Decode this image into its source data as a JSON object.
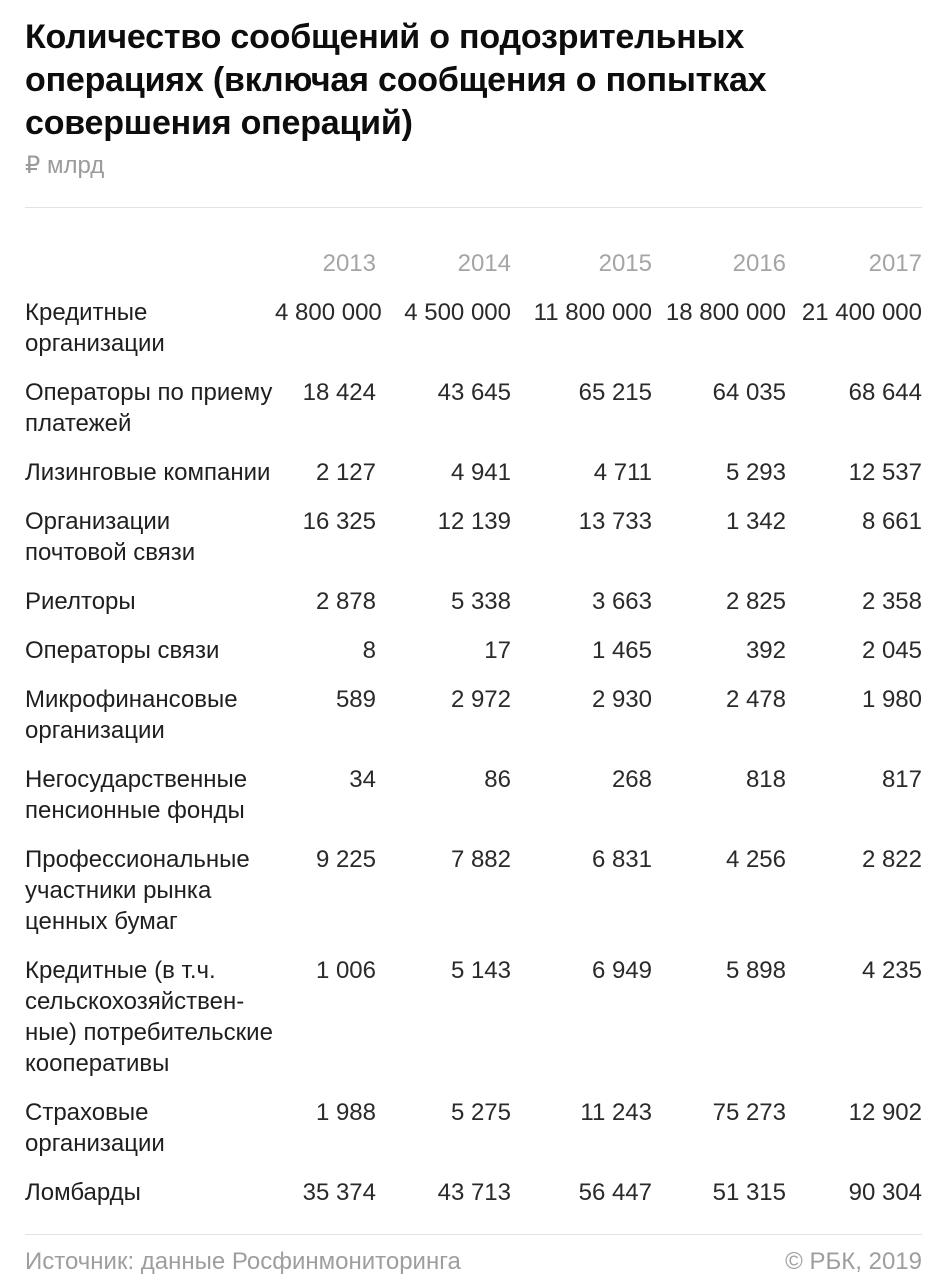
{
  "page": {
    "title": "Количество сообщений о подозрительных операциях (включая сообщения о попытках совершения операций)",
    "unit_label": "₽ млрд"
  },
  "table": {
    "year_columns": [
      "2013",
      "2014",
      "2015",
      "2016",
      "2017"
    ],
    "rows": [
      {
        "label": "Кредитные\nорганизации",
        "values": [
          "4 800 000",
          "4 500 000",
          "11 800 000",
          "18 800 000",
          "21 400 000"
        ]
      },
      {
        "label": "Операторы по приему\nплатежей",
        "values": [
          "18 424",
          "43 645",
          "65 215",
          "64 035",
          "68 644"
        ]
      },
      {
        "label": "Лизинговые компании",
        "values": [
          "2 127",
          "4 941",
          "4 711",
          "5 293",
          "12 537"
        ]
      },
      {
        "label": "Организации\nпочтовой связи",
        "values": [
          "16 325",
          "12 139",
          "13 733",
          "1 342",
          "8 661"
        ]
      },
      {
        "label": "Риелторы",
        "values": [
          "2 878",
          "5 338",
          "3 663",
          "2 825",
          "2 358"
        ]
      },
      {
        "label": "Операторы связи",
        "values": [
          "8",
          "17",
          "1 465",
          "392",
          "2 045"
        ]
      },
      {
        "label": "Микрофинансовые\nорганизации",
        "values": [
          "589",
          "2 972",
          "2 930",
          "2 478",
          "1 980"
        ]
      },
      {
        "label": "Негосударственные\nпенсионные фонды",
        "values": [
          "34",
          "86",
          "268",
          "818",
          "817"
        ]
      },
      {
        "label": "Профессиональные\nучастники рынка\nценных бумаг",
        "values": [
          "9 225",
          "7 882",
          "6 831",
          "4 256",
          "2 822"
        ]
      },
      {
        "label": "Кредитные (в т.ч.\nсельскохозяйствен-\nные) потребительские\nкооперативы",
        "values": [
          "1 006",
          "5 143",
          "6 949",
          "5 898",
          "4 235"
        ]
      },
      {
        "label": "Страховые\nорганизации",
        "values": [
          "1 988",
          "5 275",
          "11 243",
          "75 273",
          "12 902"
        ]
      },
      {
        "label": "Ломбарды",
        "values": [
          "35 374",
          "43 713",
          "56 447",
          "51 315",
          "90 304"
        ]
      }
    ]
  },
  "footer": {
    "source": "Источник: данные Росфинмониторинга",
    "copyright": "© РБК, 2019"
  },
  "colors": {
    "background": "#ffffff",
    "title_text": "#0d0d0d",
    "body_text": "#222222",
    "muted_text": "#a5a5a5",
    "divider": "#e3e3e3"
  },
  "chart_data": {
    "type": "table",
    "title": "Количество сообщений о подозрительных операциях (включая сообщения о попытках совершения операций)",
    "unit": "₽ млрд",
    "columns": [
      "2013",
      "2014",
      "2015",
      "2016",
      "2017"
    ],
    "row_labels": [
      "Кредитные организации",
      "Операторы по приему платежей",
      "Лизинговые компании",
      "Организации почтовой связи",
      "Риелторы",
      "Операторы связи",
      "Микрофинансовые организации",
      "Негосударственные пенсионные фонды",
      "Профессиональные участники рынка ценных бумаг",
      "Кредитные (в т.ч. сельскохозяйственные) потребительские кооперативы",
      "Страховые организации",
      "Ломбарды"
    ],
    "values": [
      [
        4800000,
        4500000,
        11800000,
        18800000,
        21400000
      ],
      [
        18424,
        43645,
        65215,
        64035,
        68644
      ],
      [
        2127,
        4941,
        4711,
        5293,
        12537
      ],
      [
        16325,
        12139,
        13733,
        1342,
        8661
      ],
      [
        2878,
        5338,
        3663,
        2825,
        2358
      ],
      [
        8,
        17,
        1465,
        392,
        2045
      ],
      [
        589,
        2972,
        2930,
        2478,
        1980
      ],
      [
        34,
        86,
        268,
        818,
        817
      ],
      [
        9225,
        7882,
        6831,
        4256,
        2822
      ],
      [
        1006,
        5143,
        6949,
        5898,
        4235
      ],
      [
        1988,
        5275,
        11243,
        75273,
        12902
      ],
      [
        35374,
        43713,
        56447,
        51315,
        90304
      ]
    ],
    "source": "Источник: данные Росфинмониторинга",
    "credit": "© РБК, 2019"
  }
}
